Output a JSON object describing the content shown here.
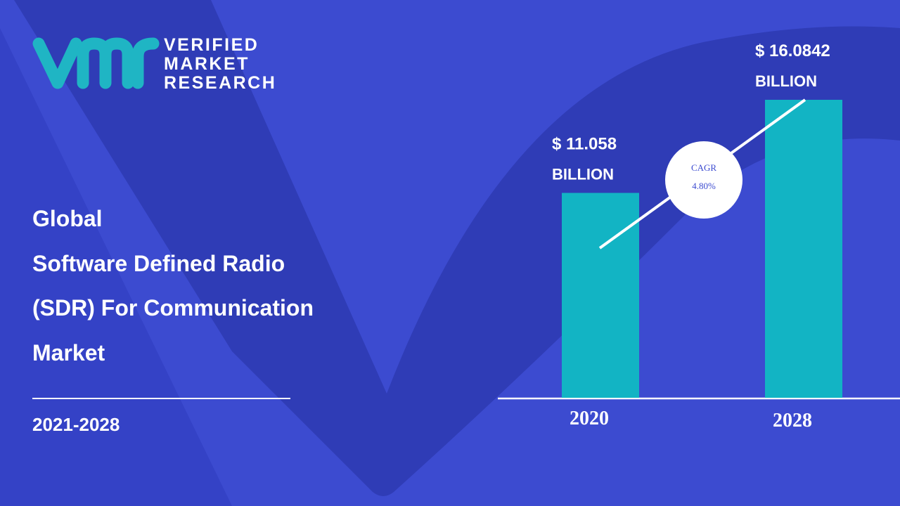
{
  "logo": {
    "lines": [
      "VERIFIED",
      "MARKET",
      "RESEARCH"
    ]
  },
  "title_lines": [
    "Global",
    "Software Defined Radio",
    "(SDR) For Communication",
    "Market"
  ],
  "period": "2021-2028",
  "chart_data": {
    "type": "bar",
    "categories": [
      "2020",
      "2028"
    ],
    "values": [
      11.058,
      16.0842
    ],
    "value_labels": [
      "$  11.058",
      "$  16.0842"
    ],
    "unit_label": "BILLION",
    "color": "#12b4c4",
    "annotation": {
      "label": "CAGR",
      "value": "4.80%"
    }
  }
}
